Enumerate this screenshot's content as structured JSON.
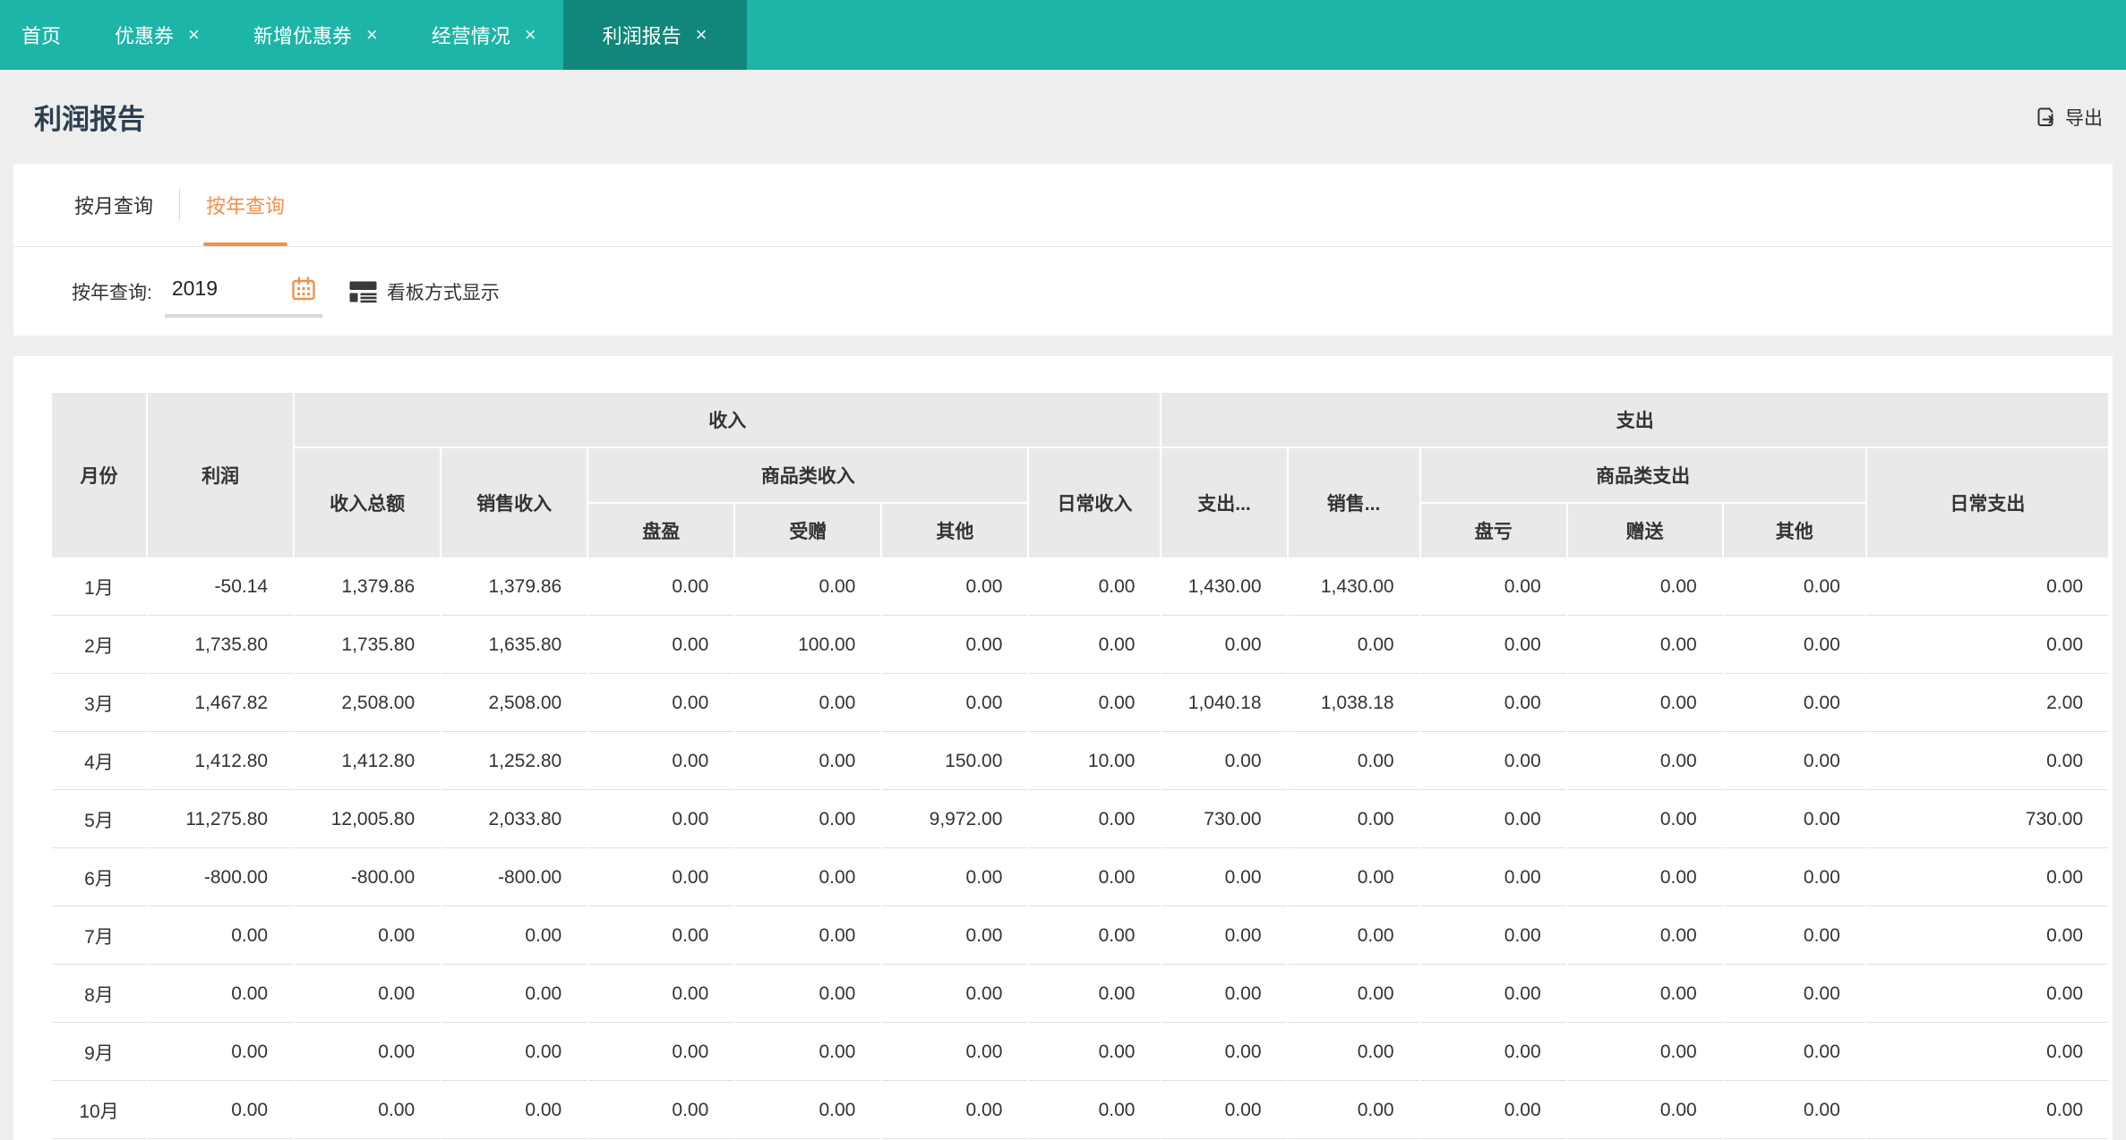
{
  "tab_bar": {
    "tabs": [
      {
        "label": "首页",
        "closable": false,
        "active": false
      },
      {
        "label": "优惠券",
        "closable": true,
        "active": false
      },
      {
        "label": "新增优惠券",
        "closable": true,
        "active": false
      },
      {
        "label": "经营情况",
        "closable": true,
        "active": false
      },
      {
        "label": "利润报告",
        "closable": true,
        "active": true
      }
    ]
  },
  "page_header": {
    "title": "利润报告",
    "export_label": "导出"
  },
  "query_tabs": {
    "items": [
      {
        "label": "按月查询",
        "active": false
      },
      {
        "label": "按年查询",
        "active": true
      }
    ]
  },
  "filter": {
    "label": "按年查询:",
    "year": "2019",
    "board_label": "看板方式显示"
  },
  "table": {
    "headers": {
      "month": "月份",
      "profit": "利润",
      "income_group": "收入",
      "expense_group": "支出",
      "income_total": "收入总额",
      "sales_income": "销售收入",
      "goods_income_group": "商品类收入",
      "surplus": "盘盈",
      "received_gift": "受赠",
      "income_other": "其他",
      "daily_income": "日常收入",
      "expense_total": "支出...",
      "sales_expense": "销售...",
      "goods_expense_group": "商品类支出",
      "deficit": "盘亏",
      "gift_given": "赠送",
      "expense_other": "其他",
      "daily_expense": "日常支出"
    },
    "rows": [
      [
        "1月",
        "-50.14",
        "1,379.86",
        "1,379.86",
        "0.00",
        "0.00",
        "0.00",
        "0.00",
        "1,430.00",
        "1,430.00",
        "0.00",
        "0.00",
        "0.00",
        "0.00"
      ],
      [
        "2月",
        "1,735.80",
        "1,735.80",
        "1,635.80",
        "0.00",
        "100.00",
        "0.00",
        "0.00",
        "0.00",
        "0.00",
        "0.00",
        "0.00",
        "0.00",
        "0.00"
      ],
      [
        "3月",
        "1,467.82",
        "2,508.00",
        "2,508.00",
        "0.00",
        "0.00",
        "0.00",
        "0.00",
        "1,040.18",
        "1,038.18",
        "0.00",
        "0.00",
        "0.00",
        "2.00"
      ],
      [
        "4月",
        "1,412.80",
        "1,412.80",
        "1,252.80",
        "0.00",
        "0.00",
        "150.00",
        "10.00",
        "0.00",
        "0.00",
        "0.00",
        "0.00",
        "0.00",
        "0.00"
      ],
      [
        "5月",
        "11,275.80",
        "12,005.80",
        "2,033.80",
        "0.00",
        "0.00",
        "9,972.00",
        "0.00",
        "730.00",
        "0.00",
        "0.00",
        "0.00",
        "0.00",
        "730.00"
      ],
      [
        "6月",
        "-800.00",
        "-800.00",
        "-800.00",
        "0.00",
        "0.00",
        "0.00",
        "0.00",
        "0.00",
        "0.00",
        "0.00",
        "0.00",
        "0.00",
        "0.00"
      ],
      [
        "7月",
        "0.00",
        "0.00",
        "0.00",
        "0.00",
        "0.00",
        "0.00",
        "0.00",
        "0.00",
        "0.00",
        "0.00",
        "0.00",
        "0.00",
        "0.00"
      ],
      [
        "8月",
        "0.00",
        "0.00",
        "0.00",
        "0.00",
        "0.00",
        "0.00",
        "0.00",
        "0.00",
        "0.00",
        "0.00",
        "0.00",
        "0.00",
        "0.00"
      ],
      [
        "9月",
        "0.00",
        "0.00",
        "0.00",
        "0.00",
        "0.00",
        "0.00",
        "0.00",
        "0.00",
        "0.00",
        "0.00",
        "0.00",
        "0.00",
        "0.00"
      ],
      [
        "10月",
        "0.00",
        "0.00",
        "0.00",
        "0.00",
        "0.00",
        "0.00",
        "0.00",
        "0.00",
        "0.00",
        "0.00",
        "0.00",
        "0.00",
        "0.00"
      ]
    ]
  },
  "colors": {
    "topbar": "#1db5a7",
    "topbar_active": "#11877b",
    "accent_orange": "#f0914d",
    "title_text": "#2c3e50",
    "table_header_bg": "#e9e9e9"
  }
}
